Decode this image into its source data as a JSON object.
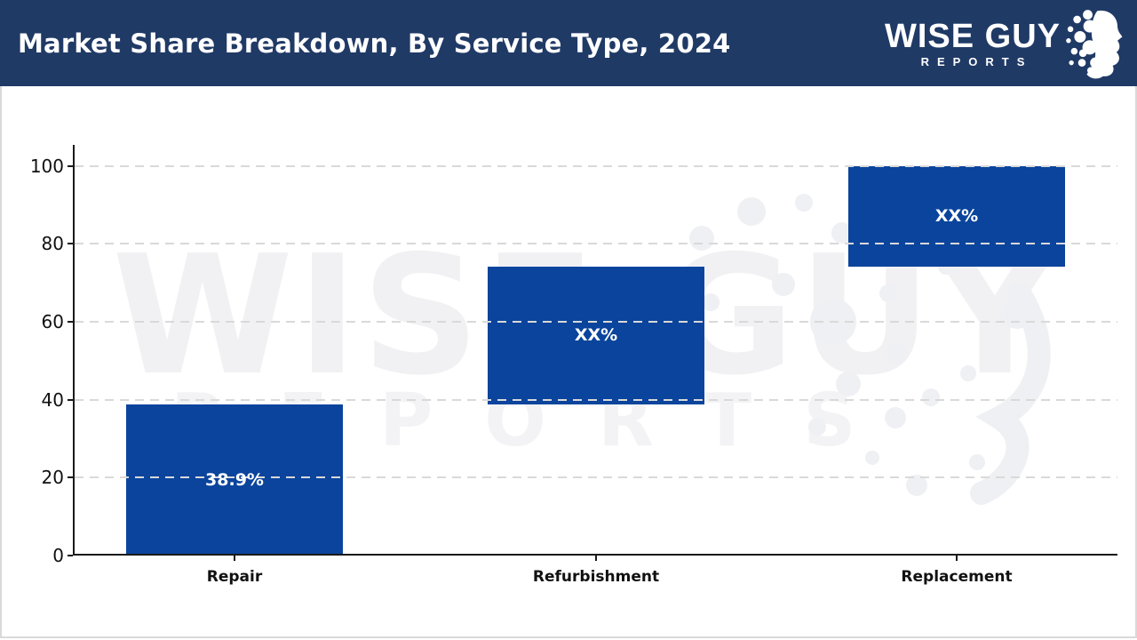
{
  "header": {
    "title": "Market Share Breakdown, By Service Type, 2024",
    "bg_color": "#203a66",
    "logo": {
      "line1": "WISE GUY",
      "line2": "REPORTS",
      "head_icon": "dotted-face-profile-icon"
    }
  },
  "watermark": {
    "line1": "WISE GUY",
    "line2": "REPORTS"
  },
  "chart_data": {
    "type": "bar",
    "variant": "waterfall",
    "title": "Market Share Breakdown, By Service Type, 2024",
    "xlabel": "",
    "ylabel": "",
    "categories": [
      "Repair",
      "Refurbishment",
      "Replacement"
    ],
    "segments": [
      {
        "category": "Repair",
        "start": 0,
        "end": 38.9,
        "label": "38.9%"
      },
      {
        "category": "Refurbishment",
        "start": 38.9,
        "end": 74.1,
        "label": "XX%"
      },
      {
        "category": "Replacement",
        "start": 74.1,
        "end": 100,
        "label": "XX%"
      }
    ],
    "yticks": [
      0,
      20,
      40,
      60,
      80,
      100
    ],
    "ylim": [
      0,
      100
    ],
    "grid": "horizontal-dashed",
    "gridline_color": "#d9d9d9",
    "bar_color": "#0a449c",
    "bar_label_color": "#ffffff",
    "axis_color": "#1a1a1a",
    "legend": null
  }
}
